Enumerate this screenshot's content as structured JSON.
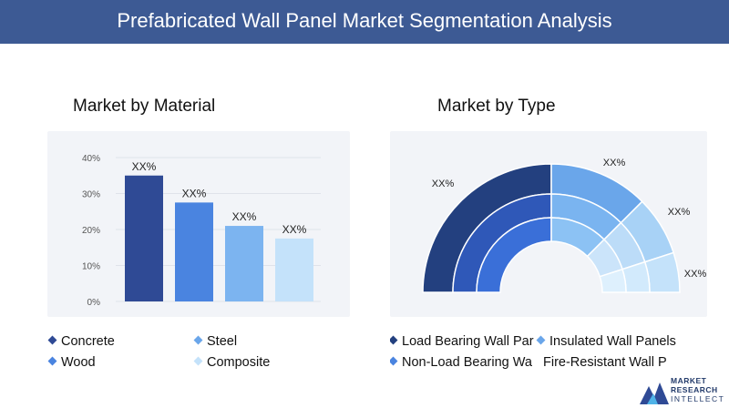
{
  "title": "Prefabricated Wall Panel Market Segmentation Analysis",
  "colors": {
    "header": "#3d5a94",
    "concrete": "#2f4a95",
    "steel": "#4a84e0",
    "wood": "#7cb4f0",
    "composite": "#c4e2fa"
  },
  "material": {
    "heading": "Market by Material",
    "legend": [
      "Concrete",
      "Steel",
      "Wood",
      "Composite"
    ]
  },
  "type": {
    "heading": "Market by Type",
    "legend": [
      "Load Bearing Wall Par",
      "Insulated Wall Panels",
      "Non-Load Bearing Wa",
      "Fire-Resistant Wall P"
    ],
    "labels": [
      "XX%",
      "XX%",
      "XX%",
      "XX%"
    ]
  },
  "logo": {
    "line1": "MARKET",
    "line2": "RESEARCH",
    "line3": "INTELLECT"
  },
  "chart_data": [
    {
      "type": "bar",
      "title": "Market by Material",
      "categories": [
        "Concrete",
        "Steel",
        "Wood",
        "Composite"
      ],
      "values": [
        35,
        27.5,
        21,
        17.5
      ],
      "data_labels": [
        "XX%",
        "XX%",
        "XX%",
        "XX%"
      ],
      "yticks": [
        "0%",
        "10%",
        "20%",
        "30%",
        "40%"
      ],
      "ylim": [
        0,
        40
      ],
      "grid": true
    },
    {
      "type": "pie",
      "title": "Market by Type",
      "categories": [
        "Load Bearing Wall Panels",
        "Insulated Wall Panels",
        "Non-Load Bearing Wall Panels",
        "Fire-Resistant Wall Panels"
      ],
      "values": [
        50,
        25,
        15,
        10
      ],
      "data_labels": [
        "XX%",
        "XX%",
        "XX%",
        "XX%"
      ]
    }
  ]
}
